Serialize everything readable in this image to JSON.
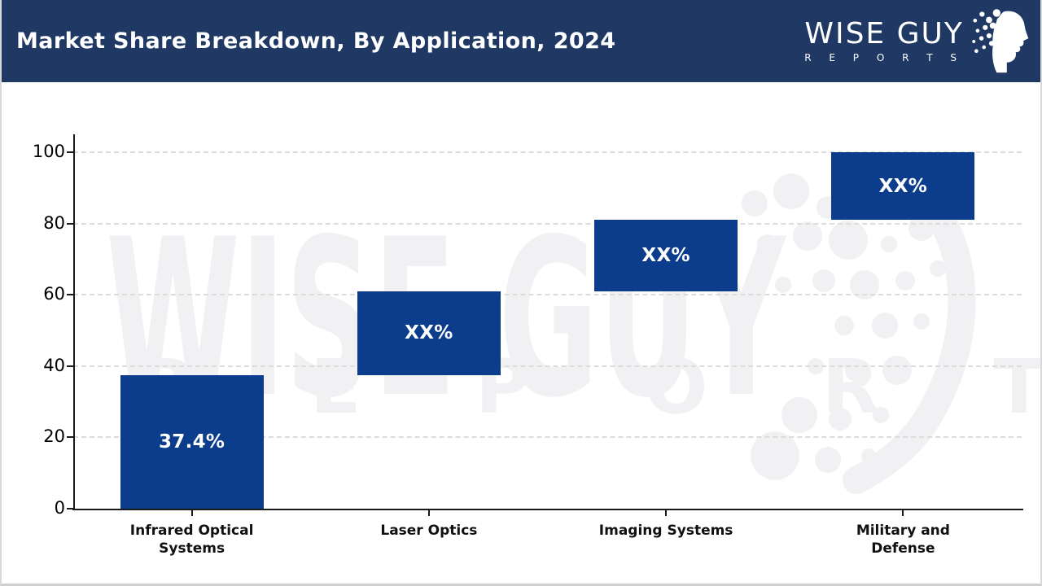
{
  "header": {
    "background": "#1f3864",
    "logo": {
      "line1": "WISE GUY",
      "line2": "R E P O R T S"
    }
  },
  "watermark": {
    "line1": "WISE GUY",
    "line2": "R E P O R T S"
  },
  "chart_data": {
    "type": "bar",
    "subtype": "floating-waterfall",
    "title": "Market Share Breakdown, By Application, 2024",
    "categories": [
      "Infrared Optical Systems",
      "Laser Optics",
      "Imaging Systems",
      "Military and Defense"
    ],
    "series": [
      {
        "name": "Market Share",
        "segments": [
          {
            "category": "Infrared Optical Systems",
            "start": 0,
            "end": 37.4,
            "label": "37.4%"
          },
          {
            "category": "Laser Optics",
            "start": 37.4,
            "end": 61,
            "label": "XX%"
          },
          {
            "category": "Imaging Systems",
            "start": 61,
            "end": 81,
            "label": "XX%"
          },
          {
            "category": "Military and Defense",
            "start": 81,
            "end": 100,
            "label": "XX%"
          }
        ]
      }
    ],
    "ylim": [
      0,
      100
    ],
    "yticks": [
      0,
      20,
      40,
      60,
      80,
      100
    ],
    "xlabel": "",
    "ylabel": "",
    "grid": {
      "horizontal": true,
      "style": "dashed",
      "color": "#dcdcdc",
      "vertical": false
    },
    "legend": "none",
    "bar_color": "#0c3d8c",
    "bar_label_color": "#ffffff",
    "axis_color": "#1a1a1a",
    "tick_label_color": "#000000"
  }
}
